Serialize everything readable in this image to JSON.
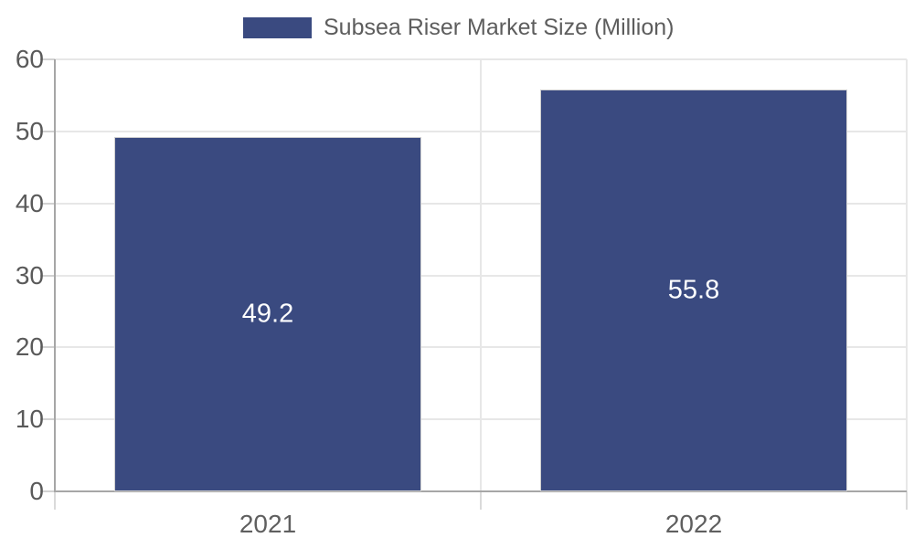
{
  "chart_data": {
    "type": "bar",
    "title": "Subsea Riser Market Size (Million)",
    "categories": [
      "2021",
      "2022"
    ],
    "series": [
      {
        "name": "Subsea Riser Market Size (Million)",
        "values": [
          49.2,
          55.8
        ]
      }
    ],
    "data_labels": [
      "49.2",
      "55.8"
    ],
    "xlabel": "",
    "ylabel": "",
    "ylim": [
      0,
      60
    ],
    "yticks": [
      0,
      10,
      20,
      30,
      40,
      50,
      60
    ],
    "ytick_labels": [
      "0",
      "10",
      "20",
      "30",
      "40",
      "50",
      "60"
    ],
    "grid": true,
    "legend_position": "top",
    "colors": {
      "bar": "#3a4a80",
      "bar_label_text": "#ffffff",
      "gridline": "#e7e7e7",
      "axis_line": "#a6a6a6",
      "tick_text": "#5a5a5a",
      "legend_text": "#5d5d5d",
      "background": "#ffffff"
    }
  }
}
